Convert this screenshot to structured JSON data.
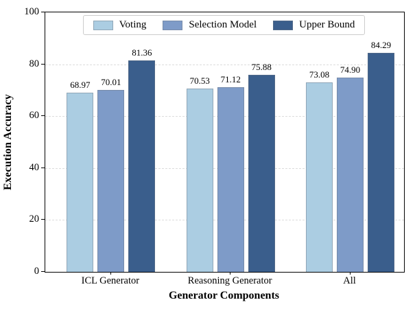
{
  "figure": {
    "background": "#ffffff"
  },
  "chart_data": {
    "type": "bar",
    "title": "",
    "categories": [
      "ICL Generator",
      "Reasoning Generator",
      "All"
    ],
    "series": [
      {
        "name": "Voting",
        "color": "#ABCDE2",
        "values": [
          68.97,
          70.53,
          73.08
        ]
      },
      {
        "name": "Selection Model",
        "color": "#7E9BC8",
        "values": [
          70.01,
          71.12,
          74.9
        ]
      },
      {
        "name": "Upper Bound",
        "color": "#3A5E8C",
        "values": [
          81.36,
          75.88,
          84.29
        ]
      }
    ],
    "xlabel": "Generator Components",
    "ylabel": "Execution Accuracy",
    "ylim": [
      0,
      100
    ],
    "yticks": [
      0,
      20,
      40,
      60,
      80,
      100
    ],
    "grid": "horizontal-dashed",
    "gridline_color": "#dcdcdc",
    "legend_position": "top-center",
    "value_label_decimals": 2,
    "bar_edge_color": "rgba(110,120,130,0.45)",
    "axis_color": "#000000",
    "text_color": "#000000"
  }
}
